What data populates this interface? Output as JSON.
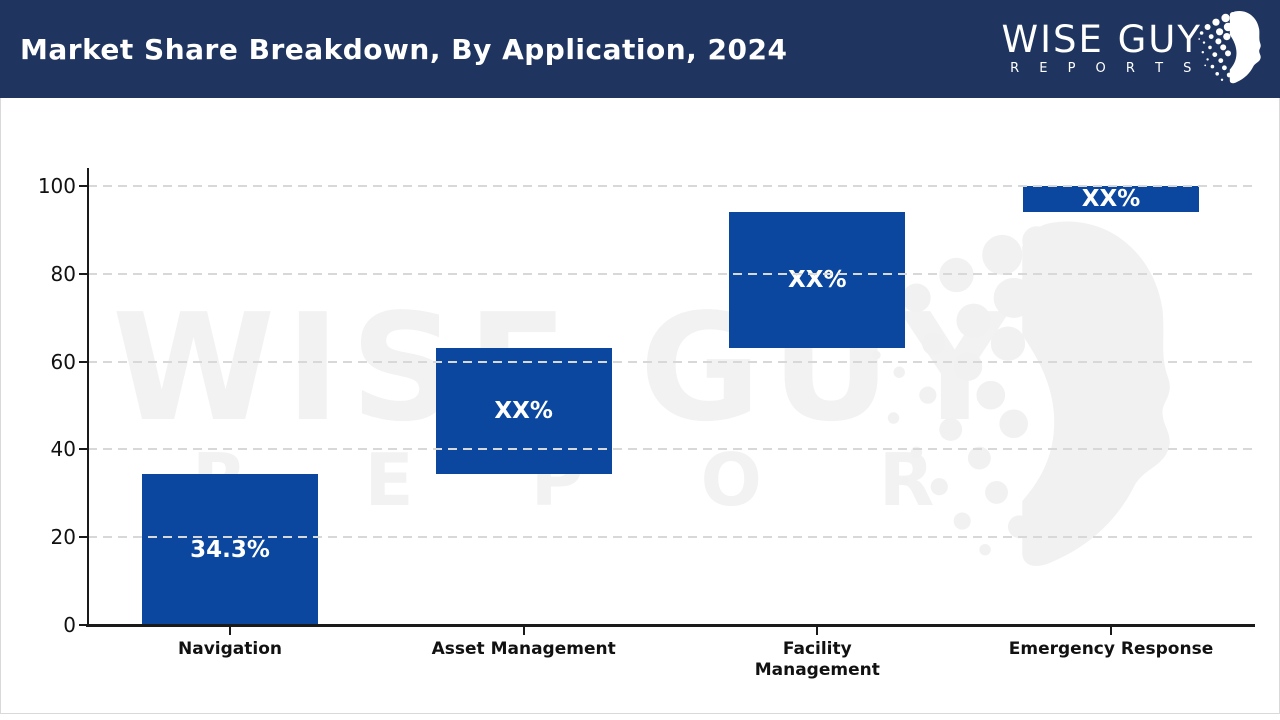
{
  "header": {
    "title": "Market Share Breakdown, By Application, 2024",
    "background_color": "#1f355f",
    "logo": {
      "wordmark": "WISE GUY",
      "subtext": "R E P O R T S"
    }
  },
  "watermark": {
    "wordmark": "WISE GUY",
    "subtext": "R E P O R T S"
  },
  "chart_data": {
    "type": "bar",
    "variant": "waterfall-floating-segments",
    "title": "Market Share Breakdown, By Application, 2024",
    "categories": [
      "Navigation",
      "Asset Management",
      "Facility\nManagement",
      "Emergency Response"
    ],
    "segments": [
      {
        "category": "Navigation",
        "start": 0,
        "end": 34.3,
        "label": "34.3%"
      },
      {
        "category": "Asset Management",
        "start": 34.3,
        "end": 63,
        "label": "XX%"
      },
      {
        "category": "Facility Management",
        "start": 63,
        "end": 94,
        "label": "XX%"
      },
      {
        "category": "Emergency Response",
        "start": 94,
        "end": 100,
        "label": "XX%"
      }
    ],
    "yticks": [
      0,
      20,
      40,
      60,
      80,
      100
    ],
    "ylim": [
      0,
      104
    ],
    "xlabel": "",
    "ylabel": "",
    "bar_color": "#0b479f",
    "bar_label_color": "#ffffff",
    "axis_color": "#1a1a1a",
    "grid": {
      "axis": "y",
      "style": "dashed",
      "color": "#d8d8d8",
      "above_bars": true
    },
    "legend": "none"
  }
}
